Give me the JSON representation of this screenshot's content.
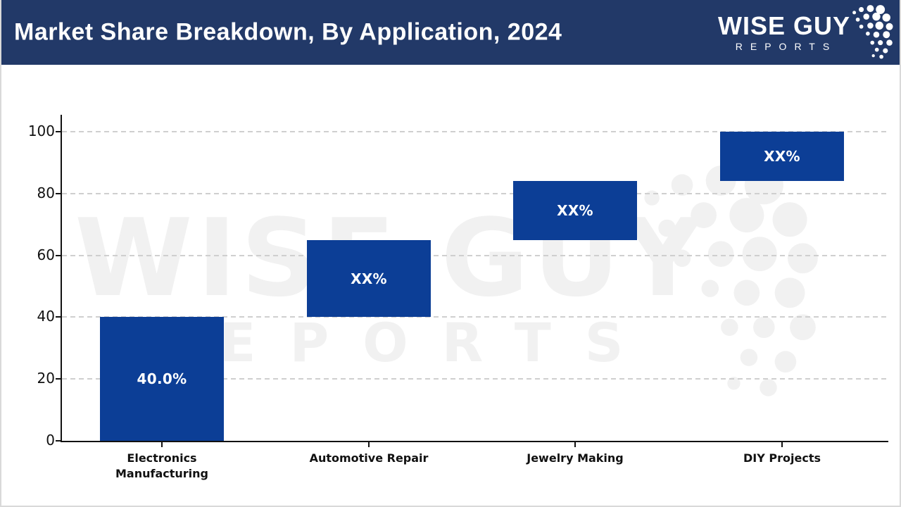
{
  "header": {
    "title": "Market Share Breakdown, By Application, 2024",
    "logo_line1": "WISE GUY",
    "logo_line2": "REPORTS"
  },
  "watermark": {
    "line1": "WISE GUY",
    "line2": "REPORTS"
  },
  "colors": {
    "header_bg": "#223968",
    "bar": "#0c3e96",
    "bar_label": "#ffffff",
    "axis": "#111111",
    "grid": "#cfcfcf",
    "watermark": "#f1f1f1",
    "title_text": "#ffffff"
  },
  "chart_data": {
    "type": "bar",
    "subtype": "waterfall",
    "title": "Market Share Breakdown, By Application, 2024",
    "xlabel": "",
    "ylabel": "",
    "ylim": [
      0,
      100
    ],
    "yticks": [
      0,
      20,
      40,
      60,
      80,
      100
    ],
    "grid": "horizontal-dashed",
    "legend": "none",
    "bar_color": "#0c3e96",
    "categories": [
      "Electronics\nManufacturing",
      "Automotive Repair",
      "Jewelry Making",
      "DIY Projects"
    ],
    "bars": [
      {
        "category": "Electronics Manufacturing",
        "start": 0,
        "end": 40,
        "label": "40.0%"
      },
      {
        "category": "Automotive Repair",
        "start": 40,
        "end": 65,
        "label": "XX%"
      },
      {
        "category": "Jewelry Making",
        "start": 65,
        "end": 84,
        "label": "XX%"
      },
      {
        "category": "DIY Projects",
        "start": 84,
        "end": 100,
        "label": "XX%"
      }
    ]
  }
}
